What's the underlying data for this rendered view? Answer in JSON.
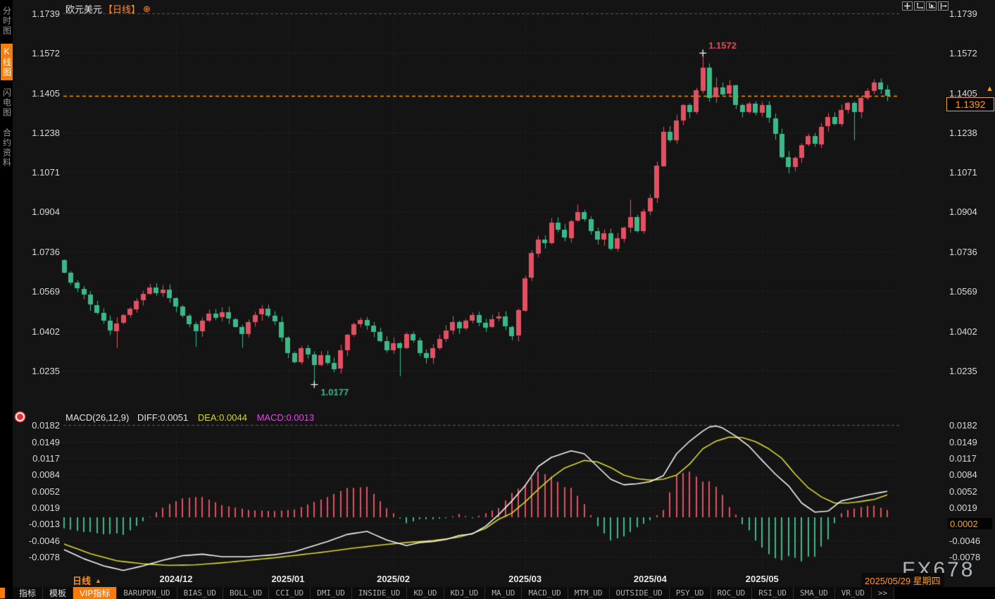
{
  "title": {
    "symbol": "欧元美元",
    "period": "【日线】",
    "add_icon": "⊕"
  },
  "sidebar": {
    "items": [
      {
        "label": "分时图",
        "active": false
      },
      {
        "label": "K线图",
        "active": true
      },
      {
        "label": "闪电图",
        "active": false
      },
      {
        "label": "合约资料",
        "active": false
      }
    ]
  },
  "toolbar": {
    "icons": [
      "move-crosshair-icon",
      "axis-autoscale-icon",
      "axis-playback-icon",
      "go-to-latest-icon"
    ]
  },
  "main_chart": {
    "price_ticks": [
      "1.1739",
      "1.1572",
      "1.1405",
      "1.1238",
      "1.1071",
      "1.0904",
      "1.0736",
      "1.0569",
      "1.0402",
      "1.0235"
    ],
    "months": [
      {
        "label": "2024/12",
        "i": 17
      },
      {
        "label": "2025/01",
        "i": 34
      },
      {
        "label": "2025/02",
        "i": 50
      },
      {
        "label": "2025/03",
        "i": 70
      },
      {
        "label": "2025/04",
        "i": 89
      },
      {
        "label": "2025/05",
        "i": 106
      }
    ],
    "current_price": "1.1392",
    "price_marker_arrow": "▲",
    "high_annotation": {
      "label": "1.1572",
      "i": 97,
      "price": 1.1572
    },
    "low_annotation": {
      "label": "1.0177",
      "i": 38,
      "price": 1.0177
    }
  },
  "macd_panel": {
    "label_macd": "MACD(26,12,9)",
    "label_diff": "DIFF:0.0051",
    "label_dea": "DEA:0.0044",
    "label_macd_val": "MACD:0.0013",
    "ticks": [
      "0.0182",
      "0.0149",
      "0.0117",
      "0.0084",
      "0.0052",
      "0.0019",
      "-0.0013",
      "-0.0046",
      "-0.0078"
    ],
    "current_value": "0.0002"
  },
  "timeline": {
    "period": "日线",
    "arrow": "▲",
    "date": "2025/05/29 星期四"
  },
  "watermark": "FX678",
  "tabs": [
    {
      "label": "指标",
      "type": "cn"
    },
    {
      "label": "模板",
      "type": "cn"
    },
    {
      "label": "VIP指标",
      "type": "vip"
    },
    {
      "label": "BARUPDN_UD",
      "type": "ind"
    },
    {
      "label": "BIAS_UD",
      "type": "ind"
    },
    {
      "label": "BOLL_UD",
      "type": "ind"
    },
    {
      "label": "CCI_UD",
      "type": "ind"
    },
    {
      "label": "DMI_UD",
      "type": "ind"
    },
    {
      "label": "INSIDE_UD",
      "type": "ind"
    },
    {
      "label": "KD_UD",
      "type": "ind"
    },
    {
      "label": "KDJ_UD",
      "type": "ind"
    },
    {
      "label": "MA_UD",
      "type": "ind"
    },
    {
      "label": "MACD_UD",
      "type": "ind"
    },
    {
      "label": "MTM_UD",
      "type": "ind"
    },
    {
      "label": "OUTSIDE_UD",
      "type": "ind"
    },
    {
      "label": "PSY_UD",
      "type": "ind"
    },
    {
      "label": "ROC_UD",
      "type": "ind"
    },
    {
      "label": "RSI_UD",
      "type": "ind"
    },
    {
      "label": "SMA_UD",
      "type": "ind"
    },
    {
      "label": "VR_UD",
      "type": "ind"
    },
    {
      "label": ">>",
      "type": "more"
    }
  ],
  "colors": {
    "up": "#e25062",
    "down": "#3cb888",
    "accent_orange": "#f57d0d",
    "price_orange": "#ff9500",
    "dea_yellow": "#d9d62f",
    "macd_magenta": "#e048e0",
    "diff_white": "#f2f2f2"
  },
  "chart_data": {
    "type": "candlestick",
    "title": "欧元美元 日线 (EUR/USD daily with MACD)",
    "x_range": "2024/11 - 2025/05/29",
    "ylim_price": [
      1.0235,
      1.1739
    ],
    "ylim_macd": [
      -0.0078,
      0.0182
    ],
    "session_high": 1.1572,
    "session_low": 1.0177,
    "last_price": 1.1392,
    "open_first": 1.07,
    "closes": [
      1.0648,
      1.0605,
      1.058,
      1.0555,
      1.0512,
      1.0478,
      1.0445,
      1.0402,
      1.0435,
      1.0468,
      1.0495,
      1.053,
      1.0558,
      1.0585,
      1.056,
      1.0575,
      1.054,
      1.0505,
      1.0465,
      1.043,
      1.04,
      1.0445,
      1.0475,
      1.0458,
      1.048,
      1.0452,
      1.042,
      1.039,
      1.044,
      1.047,
      1.0495,
      1.0465,
      1.044,
      1.0375,
      1.031,
      1.0272,
      1.033,
      1.0302,
      1.0258,
      1.03,
      1.0268,
      1.0242,
      1.032,
      1.0385,
      1.043,
      1.0448,
      1.0425,
      1.0398,
      1.036,
      1.0322,
      1.0352,
      1.033,
      1.039,
      1.0362,
      1.031,
      1.0288,
      1.033,
      1.0368,
      1.0405,
      1.044,
      1.0412,
      1.0445,
      1.047,
      1.0438,
      1.0418,
      1.0452,
      1.0462,
      1.042,
      1.0382,
      1.049,
      1.0625,
      1.073,
      1.0788,
      1.0772,
      1.0858,
      1.0828,
      1.0795,
      1.0865,
      1.0902,
      1.0872,
      1.0822,
      1.0785,
      1.0812,
      1.0748,
      1.0792,
      1.0838,
      1.0882,
      1.0822,
      1.0905,
      1.0962,
      1.1098,
      1.1242,
      1.1205,
      1.1288,
      1.1352,
      1.1322,
      1.1415,
      1.1512,
      1.1385,
      1.1428,
      1.1398,
      1.1435,
      1.1352,
      1.1322,
      1.1358,
      1.1318,
      1.1352,
      1.1298,
      1.1232,
      1.1135,
      1.1092,
      1.1132,
      1.1185,
      1.1222,
      1.1188,
      1.1262,
      1.1302,
      1.1272,
      1.1332,
      1.1362,
      1.1322,
      1.1382,
      1.1412,
      1.1448,
      1.1418,
      1.1392
    ],
    "wick_high": {
      "78": 1.0935,
      "86": 1.0955,
      "97": 1.1572,
      "99": 1.147,
      "123": 1.1462
    },
    "wick_low": {
      "8": 1.033,
      "20": 1.0335,
      "27": 1.0332,
      "38": 1.0177,
      "51": 1.0212,
      "55": 1.0265,
      "110": 1.1066,
      "120": 1.1205
    },
    "macd": {
      "params": [
        26,
        12,
        9
      ],
      "diff": 0.0051,
      "dea": 0.0044,
      "macd": 0.0013,
      "diff_keypoints": [
        [
          0,
          -0.0064
        ],
        [
          3,
          -0.0082
        ],
        [
          6,
          -0.0096
        ],
        [
          9,
          -0.0105
        ],
        [
          12,
          -0.0096
        ],
        [
          15,
          -0.0085
        ],
        [
          18,
          -0.0076
        ],
        [
          21,
          -0.0073
        ],
        [
          24,
          -0.0078
        ],
        [
          28,
          -0.0078
        ],
        [
          32,
          -0.0074
        ],
        [
          35,
          -0.0068
        ],
        [
          37,
          -0.006
        ],
        [
          40,
          -0.0048
        ],
        [
          43,
          -0.0034
        ],
        [
          46,
          -0.0028
        ],
        [
          49,
          -0.0045
        ],
        [
          52,
          -0.0056
        ],
        [
          54,
          -0.005
        ],
        [
          56,
          -0.0048
        ],
        [
          58,
          -0.0044
        ],
        [
          60,
          -0.0036
        ],
        [
          62,
          -0.0033
        ],
        [
          64,
          -0.0018
        ],
        [
          66,
          0.0005
        ],
        [
          68,
          0.0032
        ],
        [
          70,
          0.0062
        ],
        [
          72,
          0.01
        ],
        [
          74,
          0.0118
        ],
        [
          77,
          0.0131
        ],
        [
          79,
          0.0125
        ],
        [
          81,
          0.01
        ],
        [
          83,
          0.0075
        ],
        [
          85,
          0.0064
        ],
        [
          87,
          0.0066
        ],
        [
          89,
          0.007
        ],
        [
          91,
          0.0082
        ],
        [
          93,
          0.0125
        ],
        [
          95,
          0.015
        ],
        [
          97,
          0.017
        ],
        [
          98,
          0.0178
        ],
        [
          99,
          0.018
        ],
        [
          100,
          0.0176
        ],
        [
          102,
          0.016
        ],
        [
          104,
          0.014
        ],
        [
          106,
          0.0112
        ],
        [
          108,
          0.0085
        ],
        [
          110,
          0.0062
        ],
        [
          112,
          0.0028
        ],
        [
          114,
          0.001
        ],
        [
          116,
          0.0012
        ],
        [
          118,
          0.0032
        ],
        [
          120,
          0.0038
        ],
        [
          122,
          0.0044
        ],
        [
          125,
          0.0051
        ]
      ],
      "dea_keypoints": [
        [
          0,
          -0.0053
        ],
        [
          4,
          -0.0072
        ],
        [
          8,
          -0.0086
        ],
        [
          12,
          -0.0092
        ],
        [
          16,
          -0.0095
        ],
        [
          20,
          -0.0094
        ],
        [
          24,
          -0.009
        ],
        [
          28,
          -0.0085
        ],
        [
          32,
          -0.008
        ],
        [
          36,
          -0.0074
        ],
        [
          40,
          -0.0068
        ],
        [
          44,
          -0.0061
        ],
        [
          48,
          -0.0055
        ],
        [
          52,
          -0.005
        ],
        [
          56,
          -0.0046
        ],
        [
          58,
          -0.0043
        ],
        [
          60,
          -0.0039
        ],
        [
          62,
          -0.0032
        ],
        [
          64,
          -0.0022
        ],
        [
          66,
          -0.0004
        ],
        [
          68,
          0.0008
        ],
        [
          70,
          0.003
        ],
        [
          72,
          0.0055
        ],
        [
          74,
          0.0078
        ],
        [
          76,
          0.0097
        ],
        [
          79,
          0.0112
        ],
        [
          81,
          0.0109
        ],
        [
          83,
          0.0098
        ],
        [
          85,
          0.0083
        ],
        [
          87,
          0.0076
        ],
        [
          89,
          0.0073
        ],
        [
          91,
          0.0075
        ],
        [
          93,
          0.0083
        ],
        [
          95,
          0.0105
        ],
        [
          97,
          0.0135
        ],
        [
          99,
          0.015
        ],
        [
          101,
          0.0158
        ],
        [
          103,
          0.0157
        ],
        [
          105,
          0.0149
        ],
        [
          107,
          0.0135
        ],
        [
          109,
          0.0116
        ],
        [
          111,
          0.0085
        ],
        [
          113,
          0.0058
        ],
        [
          115,
          0.004
        ],
        [
          117,
          0.0028
        ],
        [
          119,
          0.0028
        ],
        [
          121,
          0.0031
        ],
        [
          123,
          0.0035
        ],
        [
          125,
          0.0044
        ]
      ]
    }
  }
}
